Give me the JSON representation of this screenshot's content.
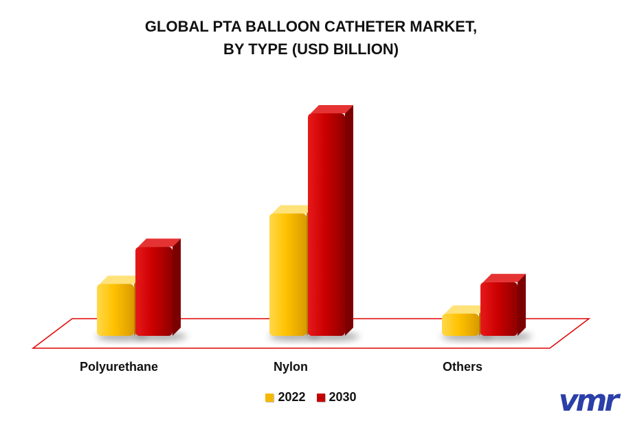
{
  "chart_data": {
    "type": "bar",
    "title_lines": [
      "GLOBAL PTA BALLOON CATHETER MARKET,",
      "BY TYPE (USD BILLION)"
    ],
    "categories": [
      "Polyurethane",
      "Nylon",
      "Others"
    ],
    "series": [
      {
        "name": "2022",
        "values": [
          0.28,
          0.66,
          0.12
        ],
        "color": "#f5b800"
      },
      {
        "name": "2030",
        "values": [
          0.48,
          1.2,
          0.29
        ],
        "color": "#c40000"
      }
    ],
    "xlabel": "",
    "ylabel": "",
    "ylim": [
      0,
      1.3
    ],
    "grid": false,
    "legend_position": "bottom"
  },
  "legend": {
    "label_2022": "2022",
    "label_2030": "2030"
  },
  "logo": {
    "text": "vmr"
  }
}
